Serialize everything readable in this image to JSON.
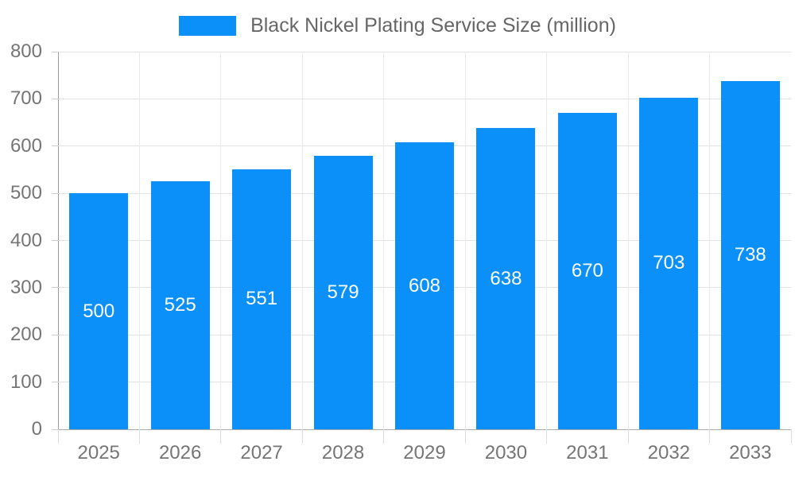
{
  "chart_data": {
    "type": "bar",
    "title": "",
    "categories": [
      "2025",
      "2026",
      "2027",
      "2028",
      "2029",
      "2030",
      "2031",
      "2032",
      "2033"
    ],
    "series": [
      {
        "name": "Black Nickel Plating Service Size (million)",
        "values": [
          500,
          525,
          551,
          579,
          608,
          638,
          670,
          703,
          738
        ]
      }
    ],
    "ylim": [
      0,
      800
    ],
    "ytick_step": 100,
    "grid": "on",
    "legend_position": "top-center",
    "data_labels": "inside-center"
  },
  "colors": {
    "background": "#ffffff",
    "bar": "#0a90f8",
    "bar_label": "#ffffff",
    "axis_line": "#9a9a9a",
    "grid_line": "#e2e2e2",
    "tick_label": "#757575",
    "legend_text": "#666666"
  }
}
